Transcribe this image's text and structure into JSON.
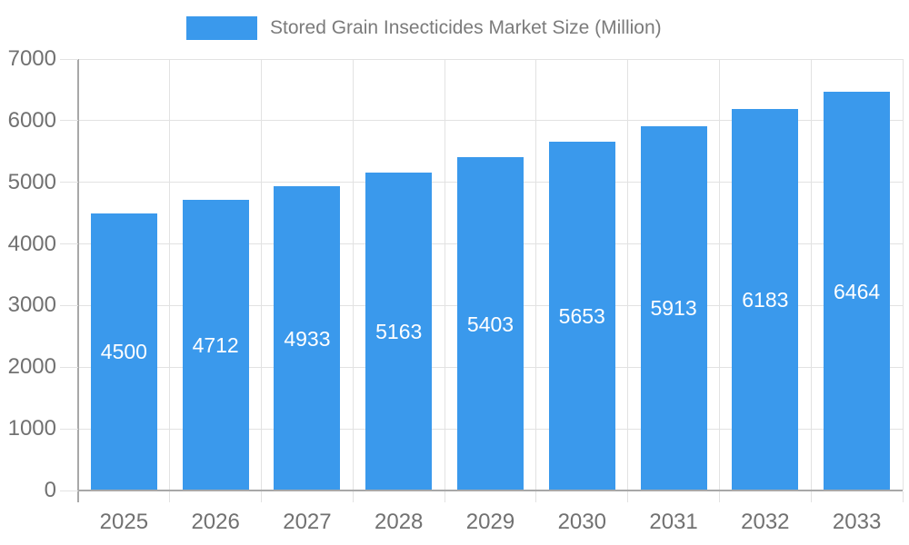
{
  "legend": {
    "series_label": "Stored Grain Insecticides Market Size (Million)",
    "swatch_color": "#3a99ec"
  },
  "chart_data": {
    "type": "bar",
    "title": "Stored Grain Insecticides Market Size (Million)",
    "series_name": "Stored Grain Insecticides Market Size (Million)",
    "categories": [
      "2025",
      "2026",
      "2027",
      "2028",
      "2029",
      "2030",
      "2031",
      "2032",
      "2033"
    ],
    "values": [
      4500,
      4712,
      4933,
      5163,
      5403,
      5653,
      5913,
      6183,
      6464
    ],
    "xlabel": "",
    "ylabel": "",
    "ylim": [
      0,
      7000
    ],
    "yticks": [
      0,
      1000,
      2000,
      3000,
      4000,
      5000,
      6000,
      7000
    ],
    "grid": true,
    "legend_position": "top",
    "bar_color": "#3a99ec",
    "bar_label_color": "#ffffff",
    "grid_color": "#e2e2e2",
    "axis_color": "#a8a8a8",
    "tick_color": "#e2e2e2",
    "tick_label_color": "#717171"
  }
}
